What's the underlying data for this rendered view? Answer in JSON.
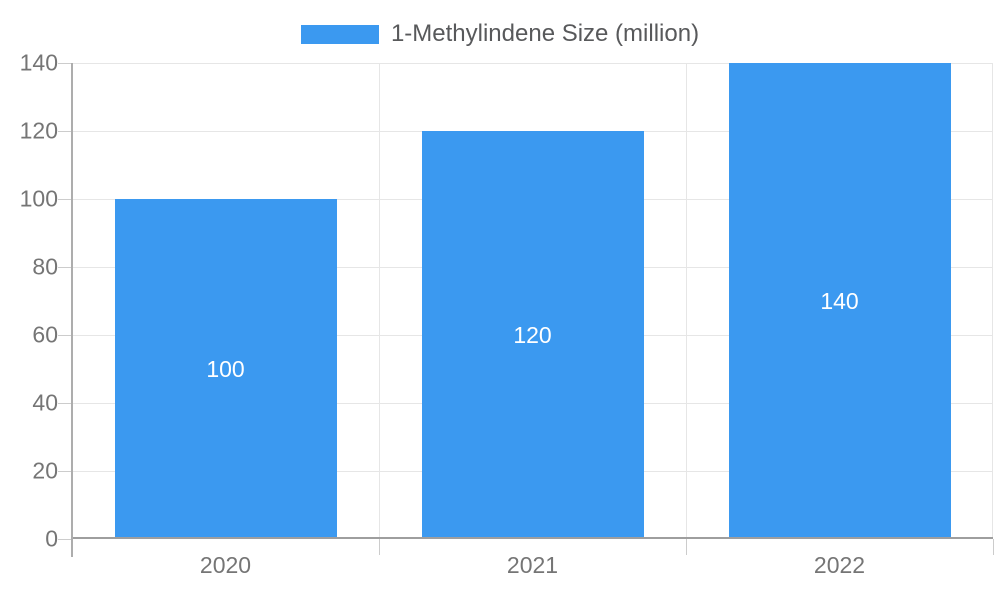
{
  "chart_data": {
    "type": "bar",
    "title": "",
    "categories": [
      "2020",
      "2021",
      "2022"
    ],
    "values": [
      100,
      120,
      140
    ],
    "series_name": "1-Methylindene Size (million)",
    "bar_value_labels": [
      "100",
      "120",
      "140"
    ],
    "xlabel": "",
    "ylabel": "",
    "ylim": [
      0,
      140
    ],
    "yticks": [
      0,
      20,
      40,
      60,
      80,
      100,
      120,
      140
    ],
    "grid": true,
    "legend_position": "top-center",
    "colors": {
      "bar": "#3B99F0",
      "bar_label": "#FFFFFF",
      "axis_text": "#757575",
      "legend_text": "#58595B",
      "gridline": "#E6E6E6",
      "axis_line": "#9E9E9E",
      "axis_line_y": "#ADADAD",
      "tick": "#CCCCCC",
      "background": "#FFFFFF"
    }
  }
}
